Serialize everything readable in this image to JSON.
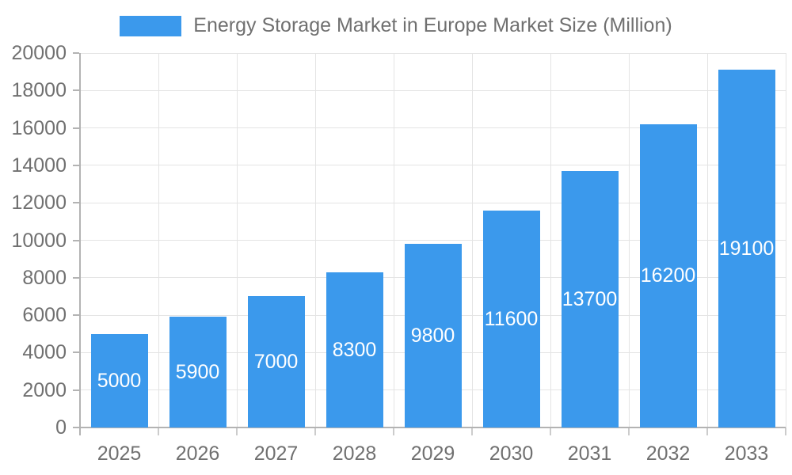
{
  "legend": {
    "label": "Energy Storage Market in Europe Market Size (Million)",
    "swatch_color": "#3b99ec"
  },
  "chart_data": {
    "type": "bar",
    "title": "Energy Storage Market in Europe Market Size (Million)",
    "categories": [
      "2025",
      "2026",
      "2027",
      "2028",
      "2029",
      "2030",
      "2031",
      "2032",
      "2033"
    ],
    "values": [
      5000,
      5900,
      7000,
      8300,
      9800,
      11600,
      13700,
      16200,
      19100
    ],
    "xlabel": "",
    "ylabel": "",
    "ylim": [
      0,
      20000
    ],
    "ytick_step": 2000,
    "grid": true,
    "legend_position": "top-center",
    "bar_color": "#3b99ec",
    "bar_label_color": "#ffffff",
    "axis_text_color": "#707070",
    "gridline_color": "#e4e4e4",
    "axis_line_color": "#b3b3b3"
  }
}
